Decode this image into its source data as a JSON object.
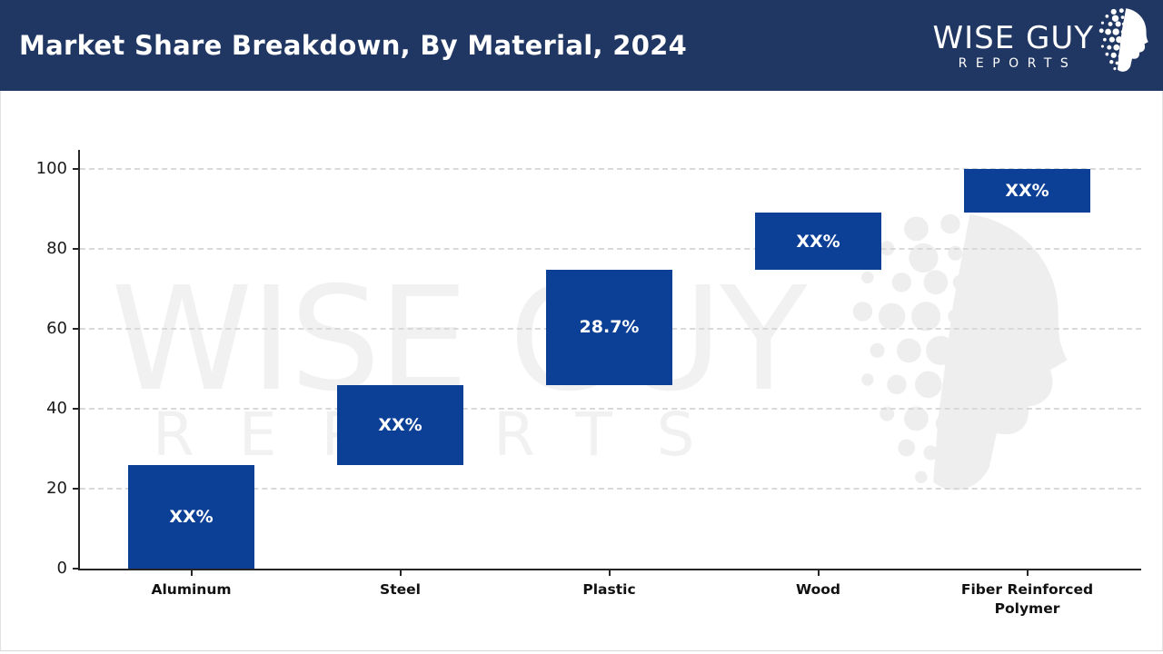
{
  "header": {
    "title": "Market Share Breakdown, By Material, 2024"
  },
  "logo": {
    "line1": "WISE GUY",
    "line2": "REPORTS"
  },
  "watermark": {
    "line1": "WISE GUY",
    "line2": "REPORTS"
  },
  "colors": {
    "header_bg": "#213763",
    "bar_fill": "#0c3f96",
    "bar_label": "#ffffff",
    "gridline": "#d9d9d9",
    "axis": "#262626",
    "watermark": "#f1f1f1"
  },
  "chart_data": {
    "type": "bar",
    "subtype": "waterfall",
    "title": "Market Share Breakdown, By Material, 2024",
    "xlabel": "",
    "ylabel": "",
    "ylim": [
      0,
      100
    ],
    "yticks": [
      0,
      20,
      40,
      60,
      80,
      100
    ],
    "grid": "dashed horizontal",
    "legend": "none",
    "categories": [
      "Aluminum",
      "Steel",
      "Plastic",
      "Wood",
      "Fiber Reinforced Polymer"
    ],
    "bars": [
      {
        "category": "Aluminum",
        "start": 0,
        "end": 26,
        "label": "XX%"
      },
      {
        "category": "Steel",
        "start": 26,
        "end": 46,
        "label": "XX%"
      },
      {
        "category": "Plastic",
        "start": 46,
        "end": 74.7,
        "label": "28.7%"
      },
      {
        "category": "Wood",
        "start": 74.7,
        "end": 89,
        "label": "XX%"
      },
      {
        "category": "Fiber Reinforced Polymer",
        "start": 89,
        "end": 100,
        "label": "XX%"
      }
    ]
  }
}
